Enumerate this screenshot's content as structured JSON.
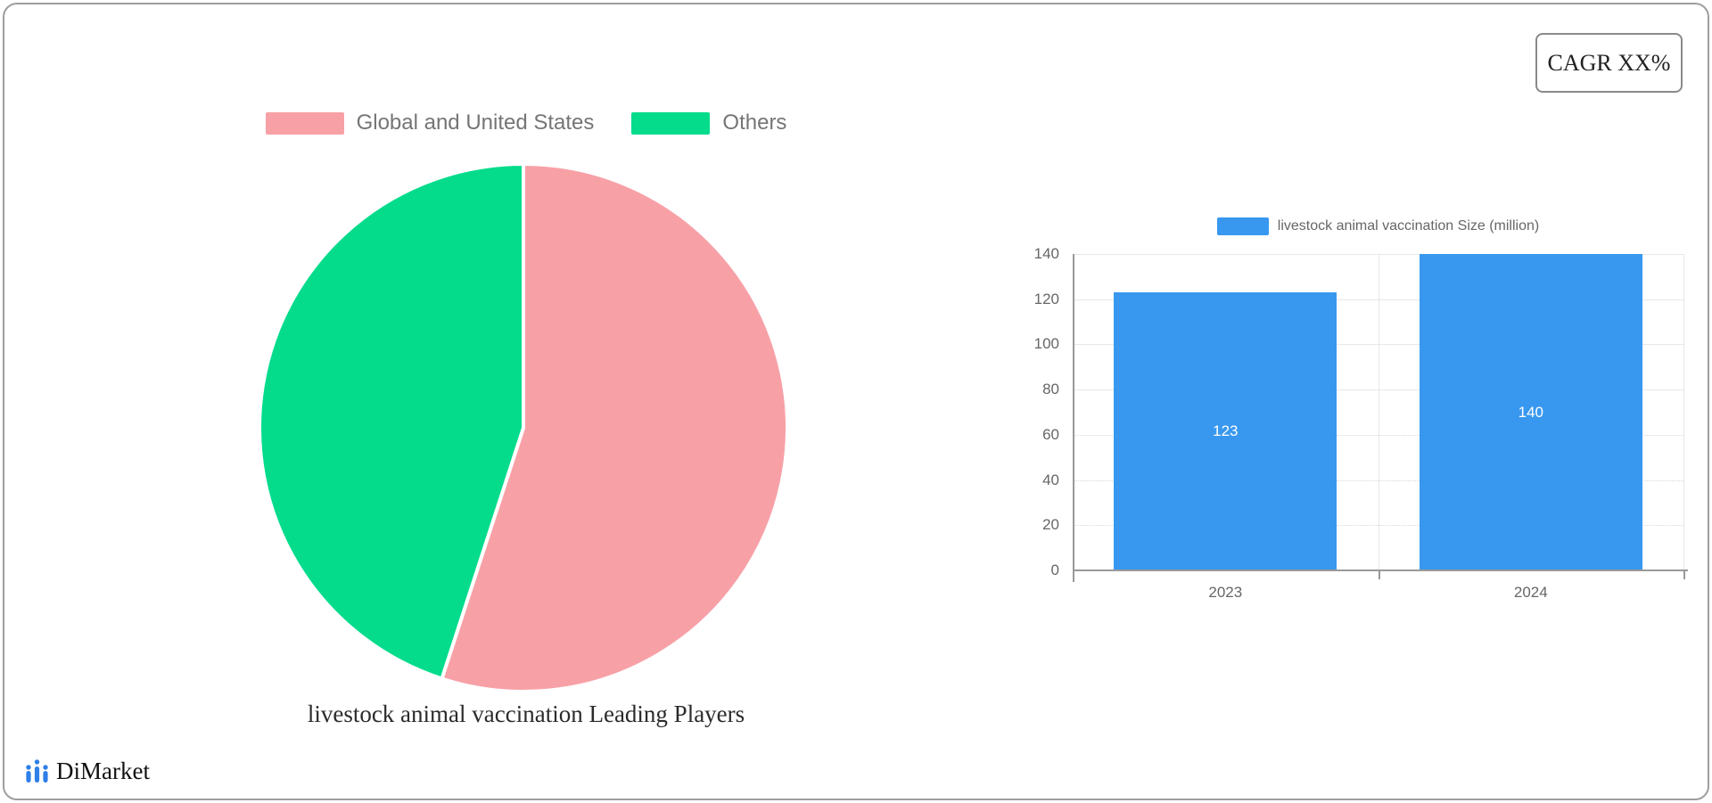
{
  "card": {
    "cagr_label": "CAGR XX%"
  },
  "branding": {
    "name": "DiMarket",
    "icon": "dimarket-bars-logo-icon",
    "icon_color": "#2e7fe8"
  },
  "colors": {
    "pie_slice_1": "#f7a1a7",
    "pie_slice_2": "#04dc8c",
    "bar_fill": "#3898ef",
    "axis": "#999999",
    "gridline": "#e7e7e7",
    "tick_label": "#666666",
    "legend_text": "#757575",
    "card_border": "#9e9e9e"
  },
  "chart_data": [
    {
      "type": "pie",
      "title": "livestock animal vaccination Leading Players",
      "slices": [
        {
          "label": "Global and United States",
          "value": 55,
          "color": "#f7a1a7"
        },
        {
          "label": "Others",
          "value": 45,
          "color": "#04dc8c"
        }
      ],
      "start_angle_deg": 0,
      "direction": "clockwise",
      "legend_position": "top",
      "values_are_estimated_percent": true
    },
    {
      "type": "bar",
      "categories": [
        "2023",
        "2024"
      ],
      "values": [
        123,
        140
      ],
      "legend": "livestock animal vaccination Size (million)",
      "title": "",
      "xlabel": "",
      "ylabel": "",
      "ylim": [
        0,
        140
      ],
      "yticks": [
        0,
        20,
        40,
        60,
        80,
        100,
        120,
        140
      ],
      "dotted_gridlines": [
        20,
        40,
        60
      ],
      "grid": true,
      "legend_position": "top",
      "value_labels": "inside-center-white"
    }
  ]
}
